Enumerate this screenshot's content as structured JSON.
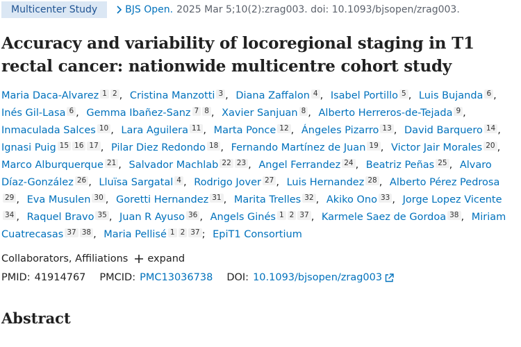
{
  "header": {
    "badge": "Multicenter Study",
    "journal": "BJS Open.",
    "citation": "2025 Mar 5;10(2):zrag003. doi: 10.1093/bjsopen/zrag003."
  },
  "title": "Accuracy and variability of locoregional staging in T1 rectal cancer: nationwide multicentre cohort study",
  "authors": {
    "separator": ",",
    "final_separator": ";",
    "group": "EpiT1 Consortium",
    "list": [
      {
        "name": "Maria Daca-Alvarez",
        "affiliations": [
          1,
          2
        ]
      },
      {
        "name": "Cristina Manzotti",
        "affiliations": [
          3
        ]
      },
      {
        "name": "Diana Zaffalon",
        "affiliations": [
          4
        ]
      },
      {
        "name": "Isabel Portillo",
        "affiliations": [
          5
        ]
      },
      {
        "name": "Luis Bujanda",
        "affiliations": [
          6
        ]
      },
      {
        "name": "Inés Gil-Lasa",
        "affiliations": [
          6
        ]
      },
      {
        "name": "Gemma Ibañez-Sanz",
        "affiliations": [
          7,
          8
        ]
      },
      {
        "name": "Xavier Sanjuan",
        "affiliations": [
          8
        ]
      },
      {
        "name": "Alberto Herreros-de-Tejada",
        "affiliations": [
          9
        ]
      },
      {
        "name": "Inmaculada Salces",
        "affiliations": [
          10
        ]
      },
      {
        "name": "Lara Aguilera",
        "affiliations": [
          11
        ]
      },
      {
        "name": "Marta Ponce",
        "affiliations": [
          12
        ]
      },
      {
        "name": "Ángeles Pizarro",
        "affiliations": [
          13
        ]
      },
      {
        "name": "David Barquero",
        "affiliations": [
          14
        ]
      },
      {
        "name": "Ignasi Puig",
        "affiliations": [
          15,
          16,
          17
        ]
      },
      {
        "name": "Pilar Diez Redondo",
        "affiliations": [
          18
        ]
      },
      {
        "name": "Fernando Martínez de Juan",
        "affiliations": [
          19
        ]
      },
      {
        "name": "Victor Jair Morales",
        "affiliations": [
          20
        ]
      },
      {
        "name": "Marco Alburquerque",
        "affiliations": [
          21
        ]
      },
      {
        "name": "Salvador Machlab",
        "affiliations": [
          22,
          23
        ]
      },
      {
        "name": "Angel Ferrandez",
        "affiliations": [
          24
        ]
      },
      {
        "name": "Beatriz Peñas",
        "affiliations": [
          25
        ]
      },
      {
        "name": "Alvaro Díaz-González",
        "affiliations": [
          26
        ]
      },
      {
        "name": "Lluïsa Sargatal",
        "affiliations": [
          4
        ]
      },
      {
        "name": "Rodrigo Jover",
        "affiliations": [
          27
        ]
      },
      {
        "name": "Luis Hernandez",
        "affiliations": [
          28
        ]
      },
      {
        "name": "Alberto Pérez Pedrosa",
        "affiliations": [
          29
        ]
      },
      {
        "name": "Eva Musulen",
        "affiliations": [
          30
        ]
      },
      {
        "name": "Goretti Hernandez",
        "affiliations": [
          31
        ]
      },
      {
        "name": "Marita Trelles",
        "affiliations": [
          32
        ]
      },
      {
        "name": "Akiko Ono",
        "affiliations": [
          33
        ]
      },
      {
        "name": "Jorge Lopez Vicente",
        "affiliations": [
          34
        ]
      },
      {
        "name": "Raquel Bravo",
        "affiliations": [
          35
        ]
      },
      {
        "name": "Juan R Ayuso",
        "affiliations": [
          36
        ]
      },
      {
        "name": "Angels Ginés",
        "affiliations": [
          1,
          2,
          37
        ]
      },
      {
        "name": "Karmele Saez de Gordoa",
        "affiliations": [
          38
        ]
      },
      {
        "name": "Miriam Cuatrecasas",
        "affiliations": [
          37,
          38
        ]
      },
      {
        "name": "Maria Pellisé",
        "affiliations": [
          1,
          2,
          37
        ]
      }
    ]
  },
  "details": {
    "collaborators": "Collaborators, Affiliations",
    "expand": "expand"
  },
  "identifiers": {
    "pmid_label": "PMID:",
    "pmid": "41914767",
    "pmcid_label": "PMCID:",
    "pmcid": "PMC13036738",
    "doi_label": "DOI:",
    "doi": "10.1093/bjsopen/zrag003"
  },
  "abstract_heading": "Abstract"
}
